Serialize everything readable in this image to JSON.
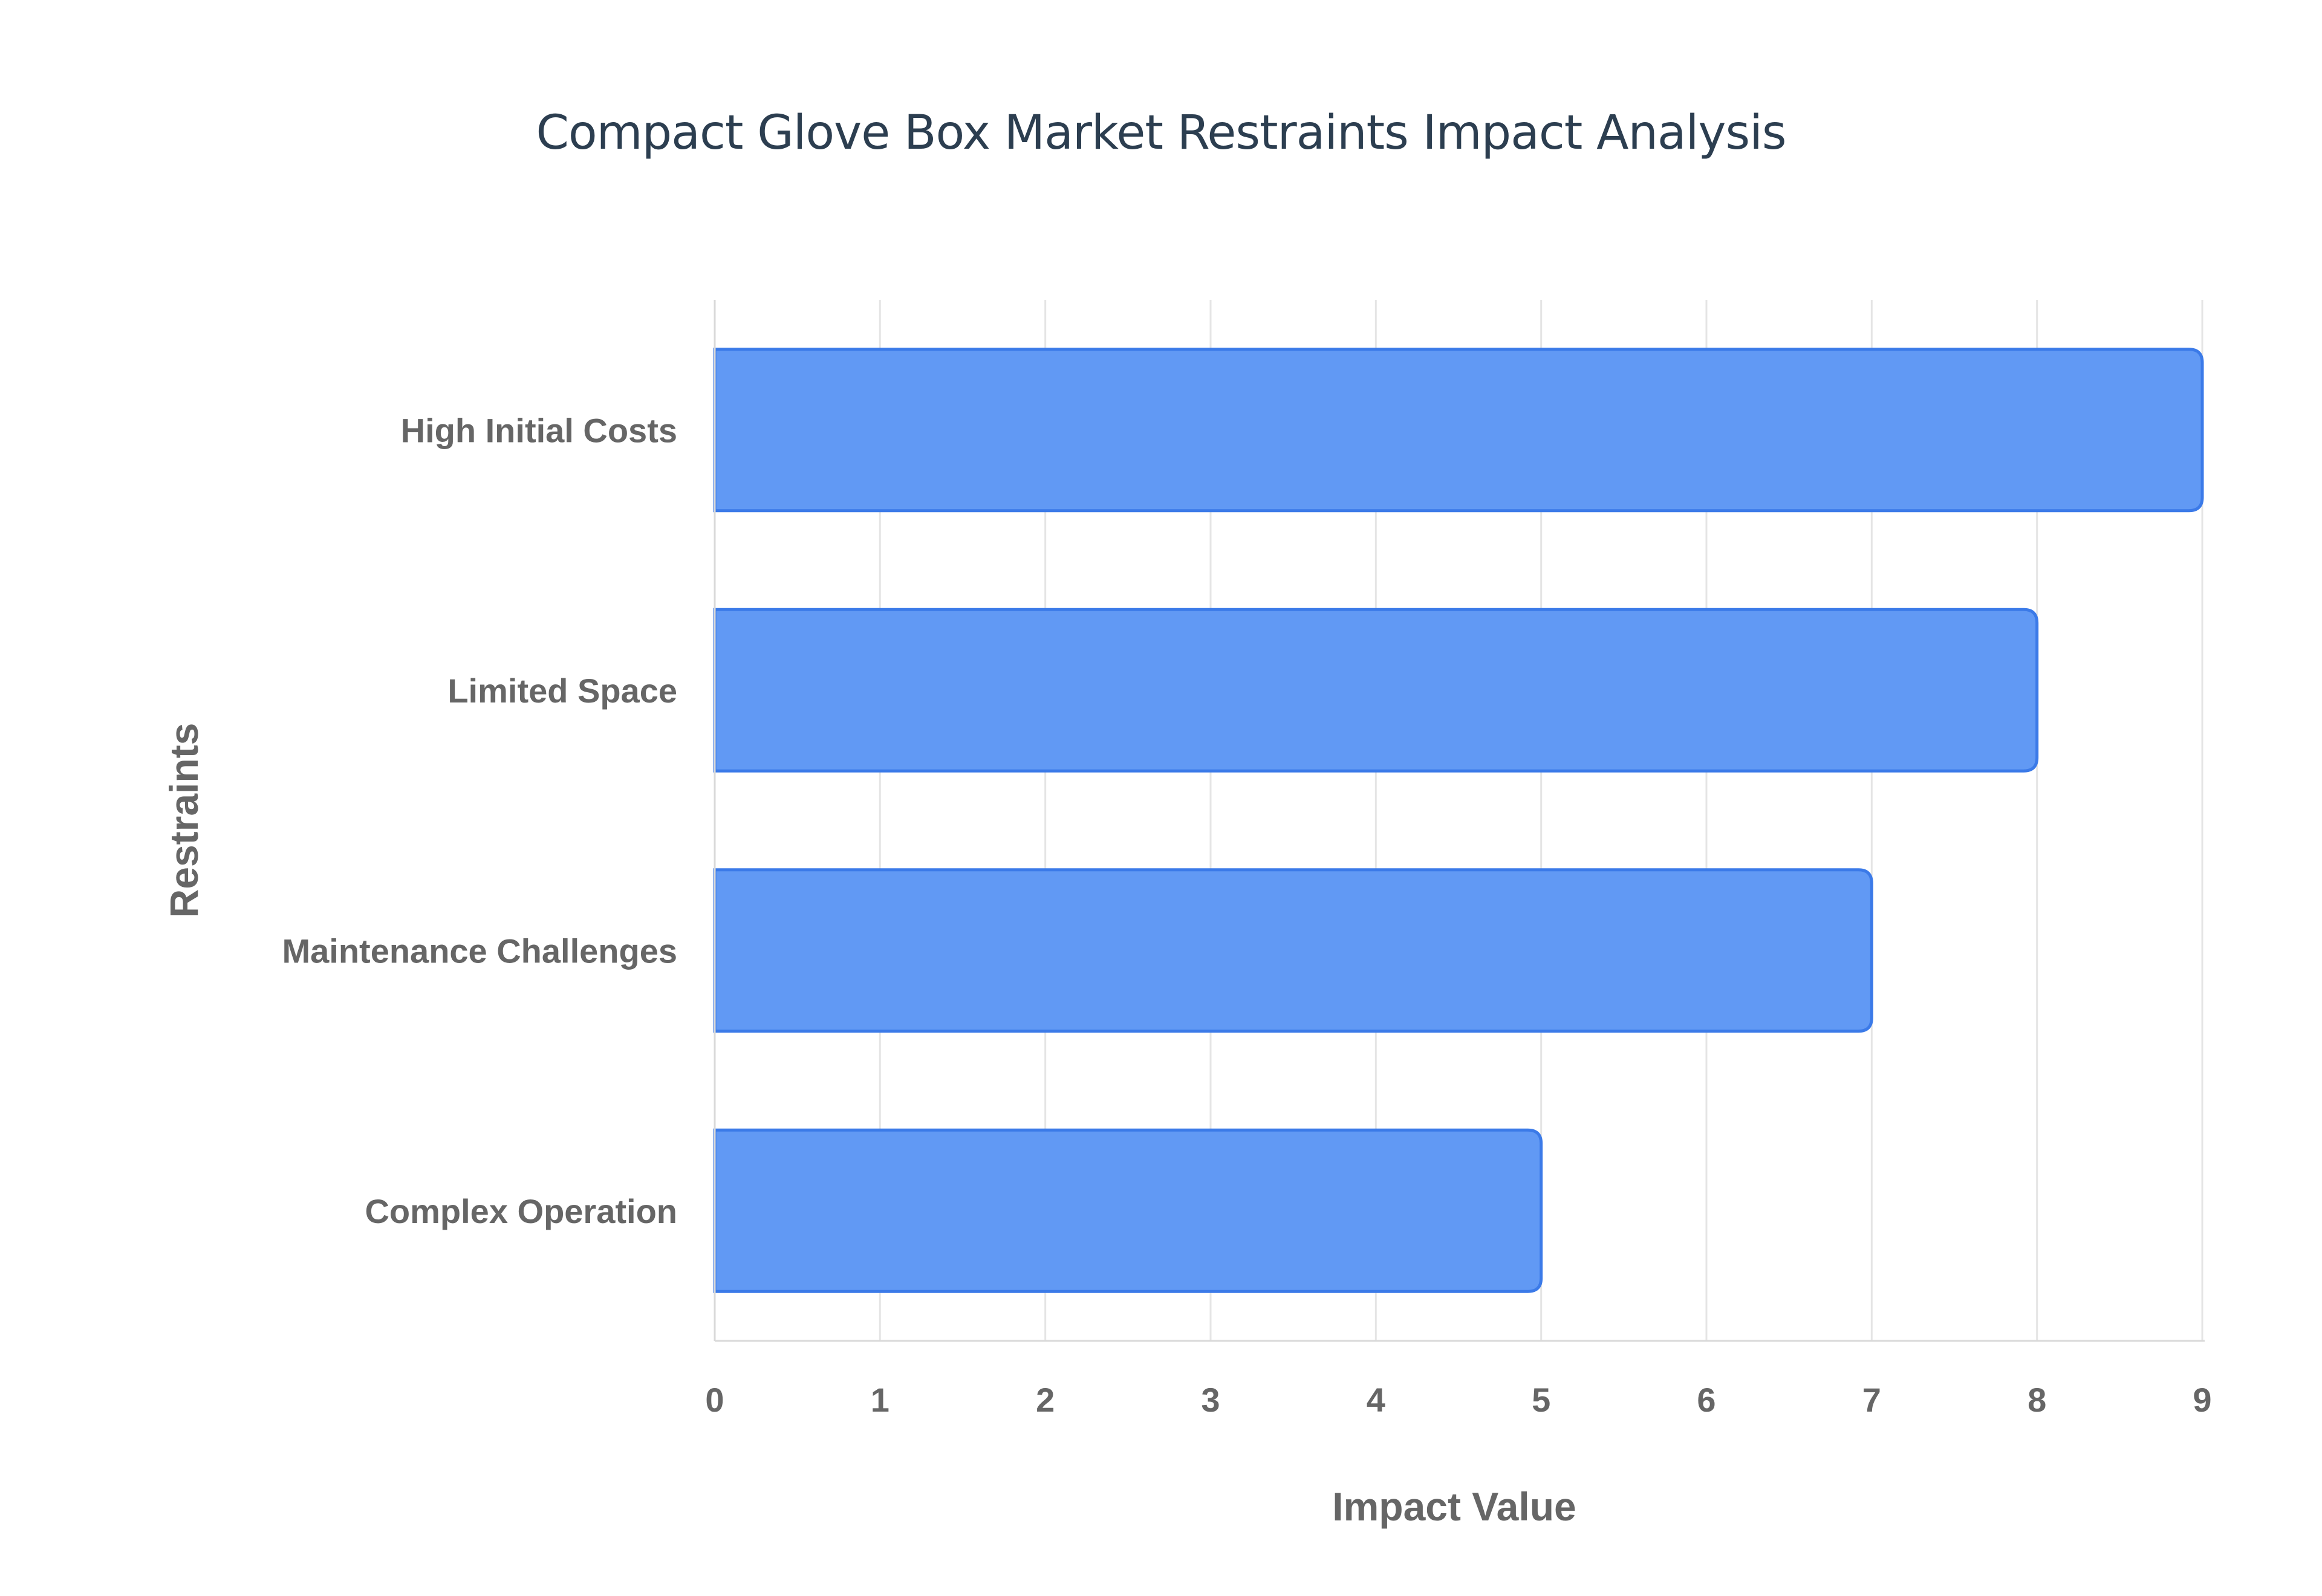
{
  "chart_data": {
    "type": "bar",
    "orientation": "horizontal",
    "title": "Compact Glove Box Market Restraints Impact Analysis",
    "xlabel": "Impact Value",
    "ylabel": "Restraints",
    "categories": [
      "High Initial Costs",
      "Limited Space",
      "Maintenance Challenges",
      "Complex Operation"
    ],
    "values": [
      9,
      8,
      7,
      5
    ],
    "xlim": [
      0,
      9
    ],
    "xticks": [
      "0",
      "1",
      "2",
      "3",
      "4",
      "5",
      "6",
      "7",
      "8",
      "9"
    ],
    "grid": true,
    "bar_color": "#6199f4",
    "bar_border_color": "#3b7ae8"
  }
}
